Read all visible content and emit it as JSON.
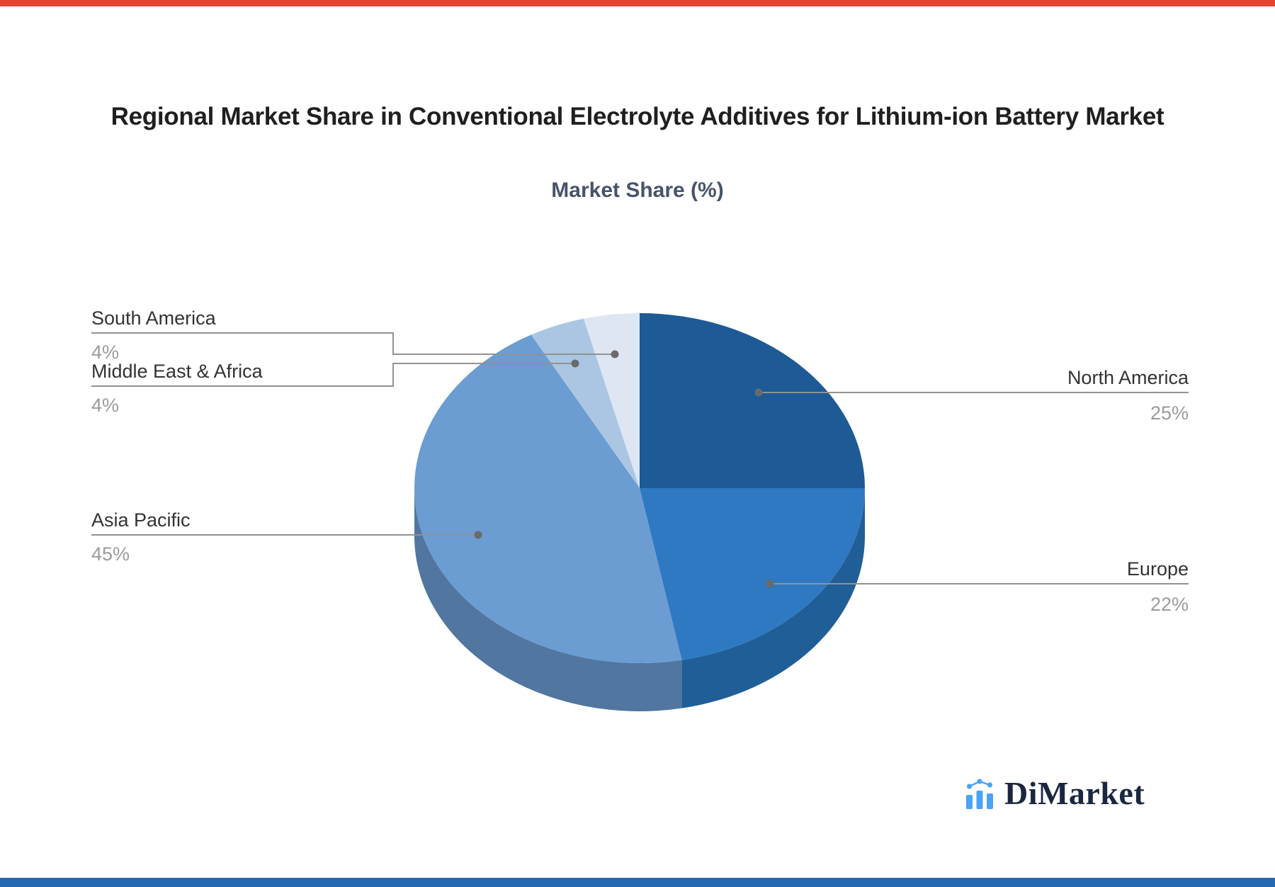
{
  "page": {
    "top_bar_color": "#e8432f",
    "bottom_bar_color": "#2569b3",
    "background": "#ffffff"
  },
  "title": "Regional Market Share in Conventional Electrolyte Additives for Lithium-ion Battery Market",
  "subtitle": "Market Share (%)",
  "brand": {
    "name": "DiMarket",
    "icon": "bar-sparkline-icon",
    "icon_color": "#4aa3f6",
    "text_color": "#1b2740"
  },
  "chart_data": {
    "type": "pie",
    "title": "Regional Market Share in Conventional Electrolyte Additives for Lithium-ion Battery Market",
    "subtitle": "Market Share (%)",
    "unit": "%",
    "effect": "3d",
    "start_angle_deg": 0,
    "direction": "clockwise",
    "legend_position": "callout-labels",
    "leader_line_color": "#929292",
    "leader_dot_color": "#6a6a6a",
    "slices": [
      {
        "label": "North America",
        "value": 25,
        "display": "25%",
        "color": "#1d5a96",
        "side_color": "#17497b"
      },
      {
        "label": "Europe",
        "value": 22,
        "display": "22%",
        "color": "#2e79c1",
        "side_color": "#205e98"
      },
      {
        "label": "Asia Pacific",
        "value": 45,
        "display": "45%",
        "color": "#6b9cd2",
        "side_color": "#51769f"
      },
      {
        "label": "Middle East & Africa",
        "value": 4,
        "display": "4%",
        "color": "#aac6e3",
        "side_color": "#8cabc9"
      },
      {
        "label": "South America",
        "value": 4,
        "display": "4%",
        "color": "#dde6f2",
        "side_color": "#b8c8da"
      }
    ]
  }
}
